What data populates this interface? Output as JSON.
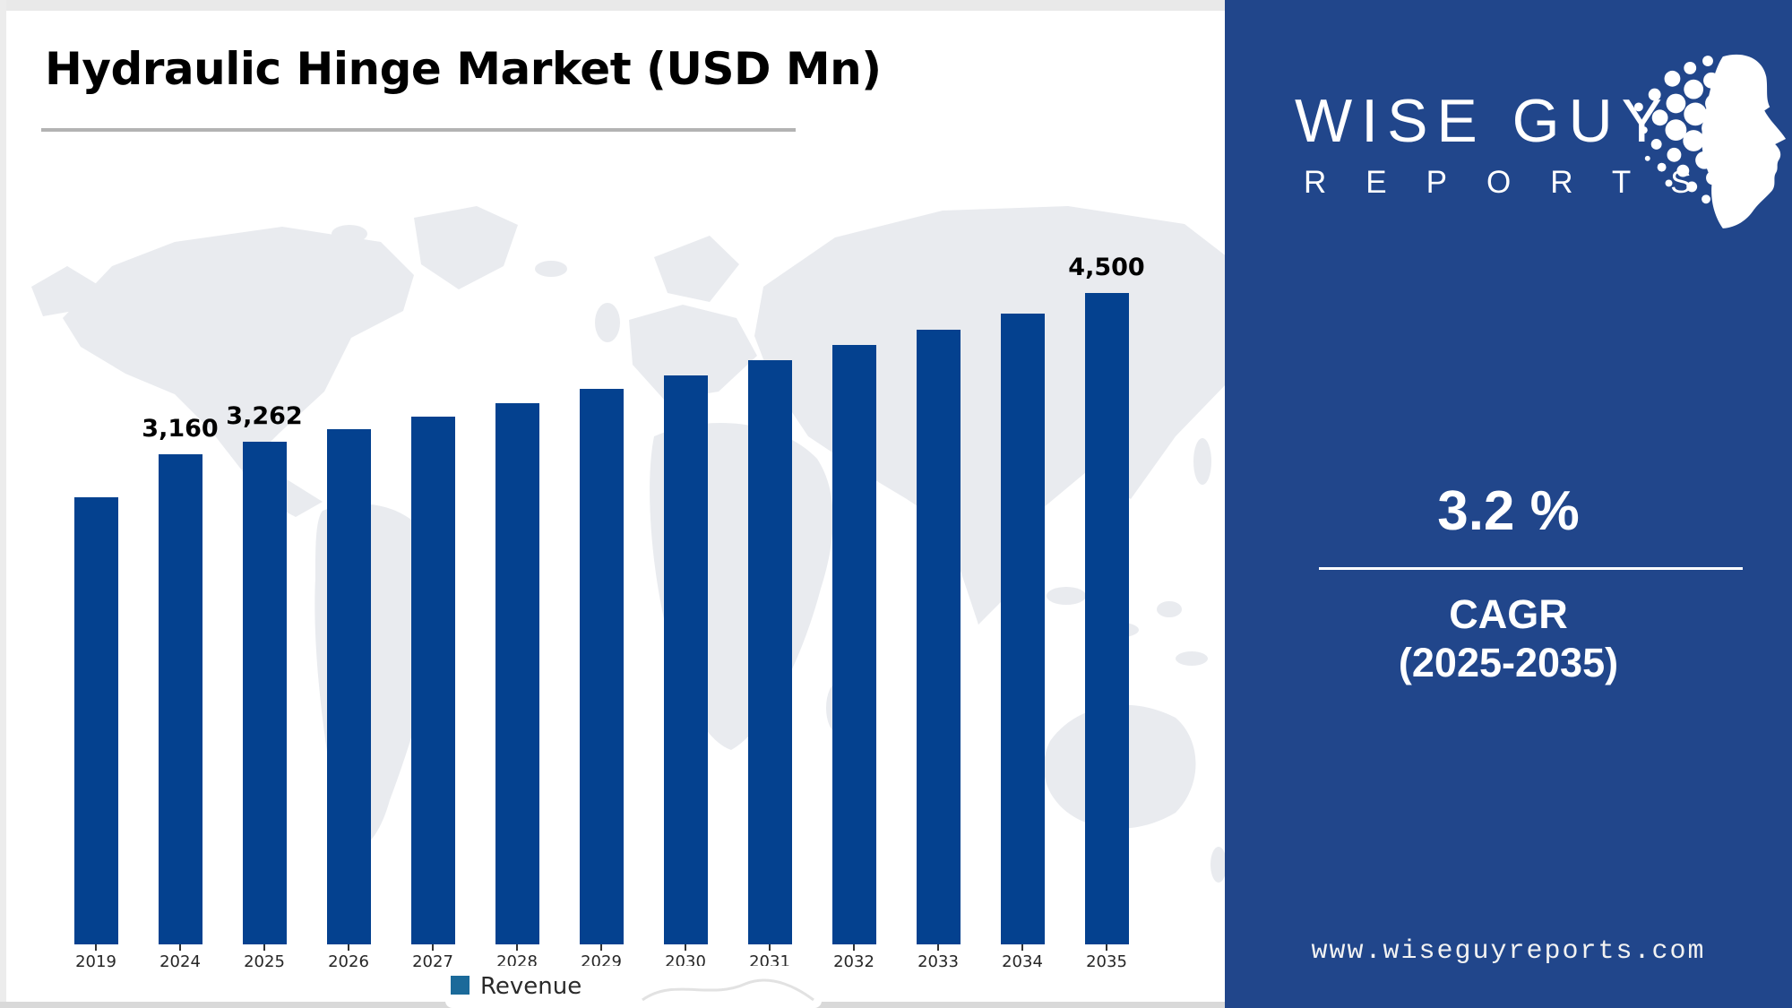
{
  "title": "Hydraulic Hinge Market (USD Mn)",
  "chart_data": {
    "type": "bar",
    "title": "Hydraulic Hinge Market (USD Mn)",
    "categories": [
      "2019",
      "2024",
      "2025",
      "2026",
      "2027",
      "2028",
      "2029",
      "2030",
      "2031",
      "2032",
      "2033",
      "2034",
      "2035"
    ],
    "values": [
      2800,
      3160,
      3262,
      3366,
      3474,
      3585,
      3700,
      3818,
      3940,
      4066,
      4196,
      4330,
      4500
    ],
    "value_labels": [
      "",
      "3,160",
      "3,262",
      "",
      "",
      "",
      "",
      "",
      "",
      "",
      "",
      "",
      "4,500"
    ],
    "series": [
      {
        "name": "Revenue"
      }
    ],
    "legend": {
      "label": "Revenue",
      "swatch_color": "#1b6a9a",
      "position": "bottom-center"
    },
    "bar_color": "#04418f",
    "xlabel": "",
    "ylabel": "",
    "gridlines": false,
    "y_axis_visible": false
  },
  "sidebar": {
    "logo_line1": "WISE GUY",
    "logo_line2": "REPORTS",
    "cagr_value": "3.2 %",
    "cagr_label_line1": "CAGR",
    "cagr_label_line2": "(2025-2035)",
    "website": "www.wiseguyreports.com"
  },
  "colors": {
    "sidebar_bg": "#21468b",
    "bar": "#04418f",
    "legend_swatch": "#1b6a9a",
    "map_watermark": "#e9ebef",
    "title_rule": "#b3b3b3"
  }
}
